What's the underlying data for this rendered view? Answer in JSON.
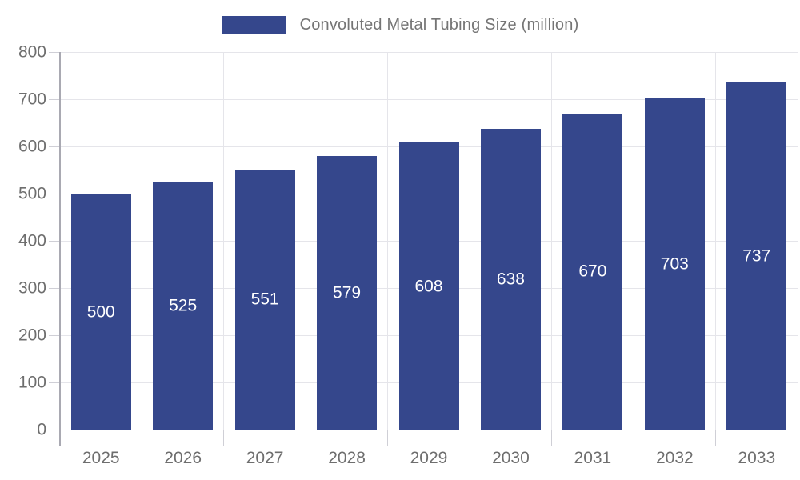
{
  "legend": {
    "label": "Convoluted Metal Tubing Size (million)"
  },
  "colors": {
    "bar": "#35478C",
    "grid": "#e5e5ea",
    "axis": "#a9a9b2",
    "tick": "#cfcfd6",
    "axis_text": "#6e6e6e",
    "legend_text": "#757575",
    "bar_label_text": "#ffffff",
    "background": "#ffffff"
  },
  "chart_data": {
    "type": "bar",
    "title": "Convoluted Metal Tubing Size (million)",
    "categories": [
      "2025",
      "2026",
      "2027",
      "2028",
      "2029",
      "2030",
      "2031",
      "2032",
      "2033"
    ],
    "values": [
      500,
      525,
      551,
      579,
      608,
      638,
      670,
      703,
      737
    ],
    "xlabel": "",
    "ylabel": "",
    "ylim": [
      0,
      800
    ],
    "ytick_step": 100,
    "yticks": [
      0,
      100,
      200,
      300,
      400,
      500,
      600,
      700,
      800
    ],
    "grid": true,
    "bar_labels_inside": true,
    "legend_position": "top"
  }
}
